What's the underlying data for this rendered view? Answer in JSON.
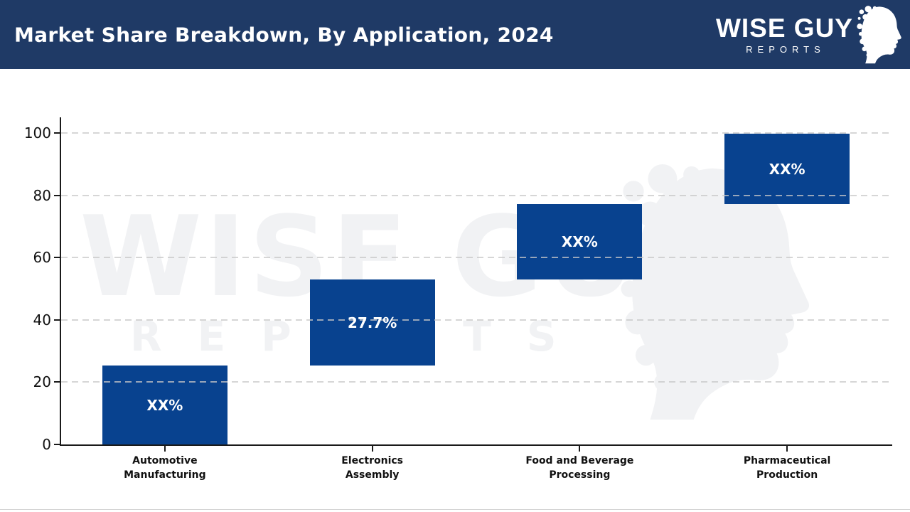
{
  "header": {
    "title": "Market Share Breakdown, By Application, 2024",
    "brand": {
      "wordmark": "WISE GUY",
      "subtext": "REPORTS"
    },
    "bg_color": "#1f3a66"
  },
  "watermark": {
    "wordmark": "WISE GUY",
    "subtext": "REPORTS"
  },
  "chart_data": {
    "type": "bar",
    "subtype": "waterfall",
    "title": "Market Share Breakdown, By Application, 2024",
    "categories": [
      "Automotive\nManufacturing",
      "Electronics\nAssembly",
      "Food and Beverage\nProcessing",
      "Pharmaceutical\nProduction"
    ],
    "series": [
      {
        "name": "Market share (%)",
        "segments": [
          {
            "category": "Automotive Manufacturing",
            "start": 0,
            "end": 25.3,
            "label": "XX%"
          },
          {
            "category": "Electronics Assembly",
            "start": 25.3,
            "end": 53.0,
            "label": "27.7%"
          },
          {
            "category": "Food and Beverage Processing",
            "start": 53.0,
            "end": 77.2,
            "label": "XX%"
          },
          {
            "category": "Pharmaceutical Production",
            "start": 77.2,
            "end": 99.7,
            "label": "XX%"
          }
        ]
      }
    ],
    "xlabel": "",
    "ylabel": "",
    "ylim": [
      0,
      100
    ],
    "yticks": [
      0,
      20,
      40,
      60,
      80,
      100
    ],
    "grid": "horizontal-dashed",
    "legend": null,
    "colors": {
      "bar": "#08428f",
      "bar_label": "#ffffff",
      "grid": "#d8d8d8",
      "axis": "#1a1a1a",
      "header_bg": "#1f3a66",
      "watermark": "#f1f2f4"
    }
  }
}
